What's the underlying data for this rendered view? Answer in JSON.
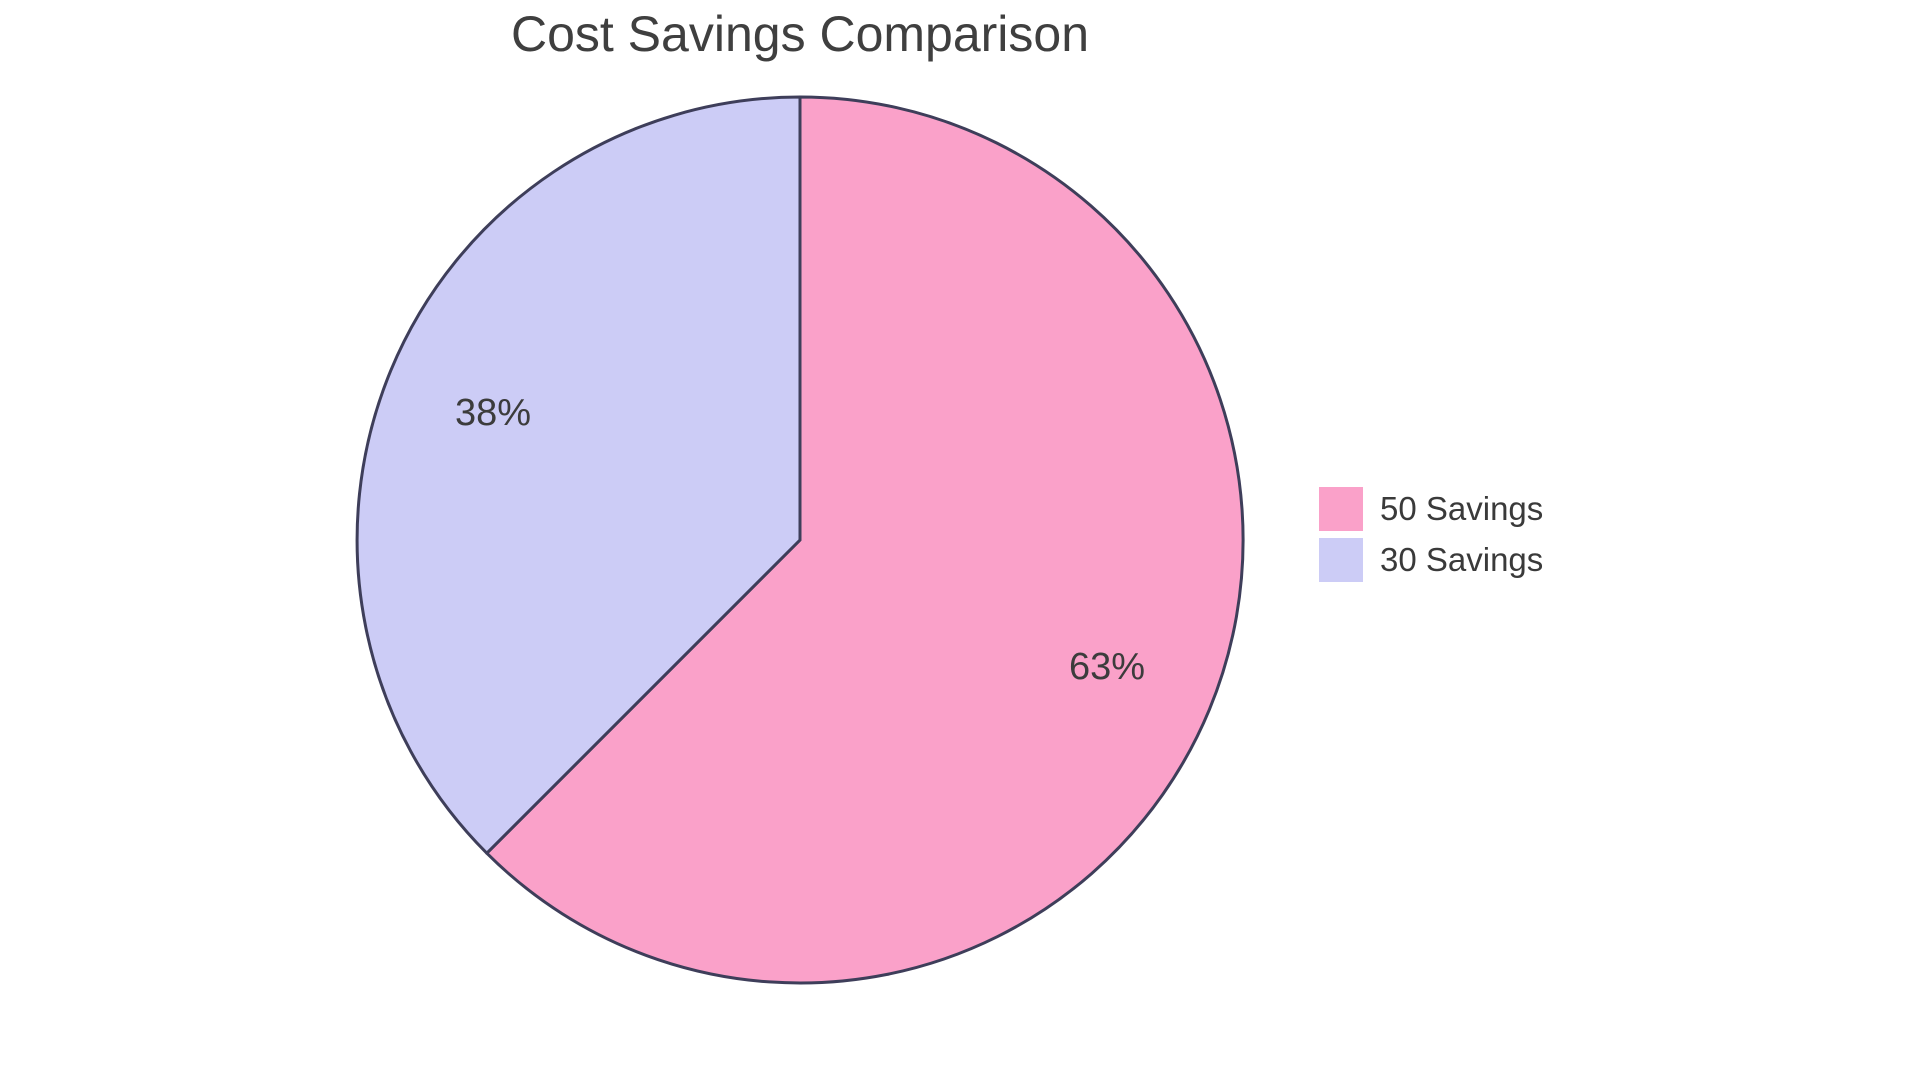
{
  "chart_data": {
    "type": "pie",
    "title": "Cost Savings Comparison",
    "categories": [
      "50 Savings",
      "30 Savings"
    ],
    "values": [
      50,
      30
    ],
    "slices": [
      {
        "label": "50 Savings",
        "value": 50,
        "percent_label": "63%",
        "color": "#FAA1C9"
      },
      {
        "label": "30 Savings",
        "value": 30,
        "percent_label": "38%",
        "color": "#CCCCF6"
      }
    ],
    "start_angle": "top",
    "direction": "clockwise",
    "outline_color": "#3E3E5A",
    "percent_label_color": "#3C3C3C",
    "title_color": "#3F3F3F",
    "legend_position": "right",
    "legend_text_color": "#3A3A3A",
    "background_color": "#FFFFFF"
  }
}
